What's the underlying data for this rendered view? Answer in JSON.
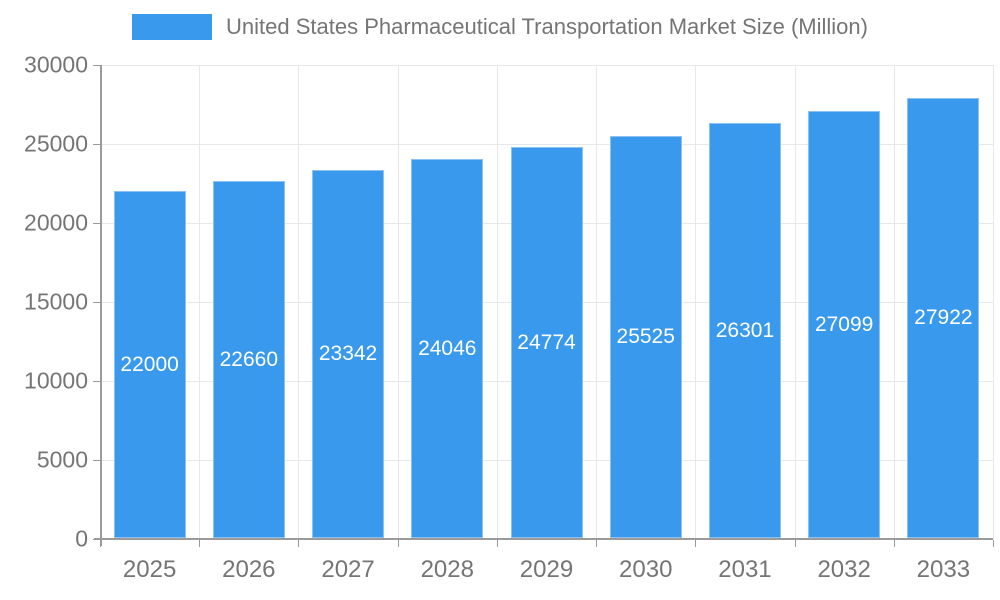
{
  "legend": {
    "label": "United States Pharmaceutical Transportation Market Size (Million)"
  },
  "chart_data": {
    "type": "bar",
    "title": "",
    "categories": [
      "2025",
      "2026",
      "2027",
      "2028",
      "2029",
      "2030",
      "2031",
      "2032",
      "2033"
    ],
    "series": [
      {
        "name": "United States Pharmaceutical Transportation Market Size (Million)",
        "values": [
          22000,
          22660,
          23342,
          24046,
          24774,
          25525,
          26301,
          27099,
          27922
        ]
      }
    ],
    "xlabel": "",
    "ylabel": "",
    "ylim": [
      0,
      30000
    ],
    "y_ticks": [
      0,
      5000,
      10000,
      15000,
      20000,
      25000,
      30000
    ],
    "grid": true,
    "legend_position": "top",
    "value_labels": "inside-center",
    "colors": {
      "bar_fill": "#3999ED",
      "bar_border": "#8FC0F2",
      "value_label_text": "#FFFFFF",
      "axis_line": "#9A9A9A",
      "gridline": "#E8E8E8",
      "tick_text": "#757575",
      "legend_text": "#757575"
    }
  }
}
